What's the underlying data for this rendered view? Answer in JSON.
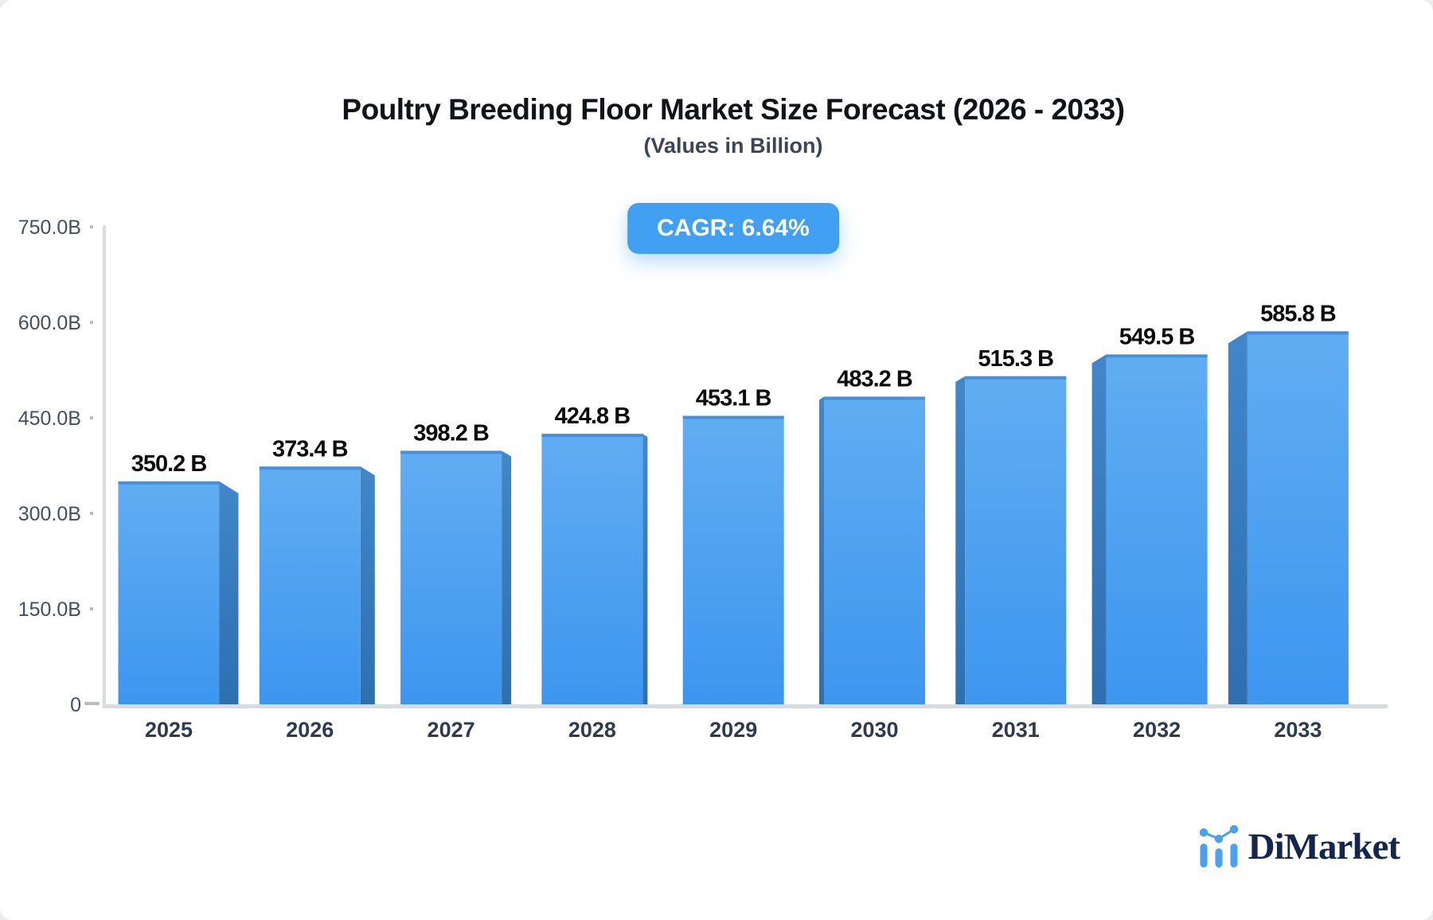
{
  "header": {
    "title": "Poultry Breeding Floor Market Size Forecast (2026 - 2033)",
    "subtitle": "(Values in Billion)"
  },
  "badge": {
    "label": "CAGR: 6.64%"
  },
  "chart_data": {
    "type": "bar",
    "title": "Poultry Breeding Floor Market Size Forecast (2026 - 2033)",
    "subtitle": "(Values in Billion)",
    "categories": [
      "2025",
      "2026",
      "2027",
      "2028",
      "2029",
      "2030",
      "2031",
      "2032",
      "2033"
    ],
    "values": [
      350.2,
      373.4,
      398.2,
      424.8,
      453.1,
      483.2,
      515.3,
      549.5,
      585.8
    ],
    "bar_labels": [
      "350.2 B",
      "373.4 B",
      "398.2 B",
      "424.8 B",
      "453.1 B",
      "483.2 B",
      "515.3 B",
      "549.5 B",
      "585.8 B"
    ],
    "xlabel": "",
    "ylabel": "",
    "ylim": [
      0,
      750
    ],
    "yticks": [
      {
        "value": 750,
        "label": "750.0B"
      },
      {
        "value": 600,
        "label": "600.0B"
      },
      {
        "value": 450,
        "label": "450.0B"
      },
      {
        "value": 300,
        "label": "300.0B"
      },
      {
        "value": 150,
        "label": "150.0B"
      },
      {
        "value": 0,
        "label": "0"
      }
    ],
    "grid": false,
    "legend": null,
    "style": "3d-perspective-bars",
    "annotation": "CAGR: 6.64%"
  },
  "branding": {
    "name": "DiMarket",
    "icon": "bar-chart-trend-icon"
  },
  "colors": {
    "badge_bg": "#42A0F2",
    "badge_text": "#FFFFFF",
    "bar_face_top": "#61ADF2",
    "bar_face_bottom": "#3D96EF",
    "bar_side_top": "#4187CA",
    "bar_side_bottom": "#2E6FAF",
    "bar_top_edge": "#4690DB",
    "axis_line": "#D8DBDF",
    "tick_mark": "#B7BDC5",
    "tick_text": "#435061",
    "category_text": "#2D3B4E",
    "value_text": "#0B0B0C",
    "title_text": "#101317",
    "subtitle_text": "#3B4556",
    "logo_navy": "#14264B",
    "logo_blue": "#4AA0F2",
    "page_bg": "#FFFFFF"
  }
}
